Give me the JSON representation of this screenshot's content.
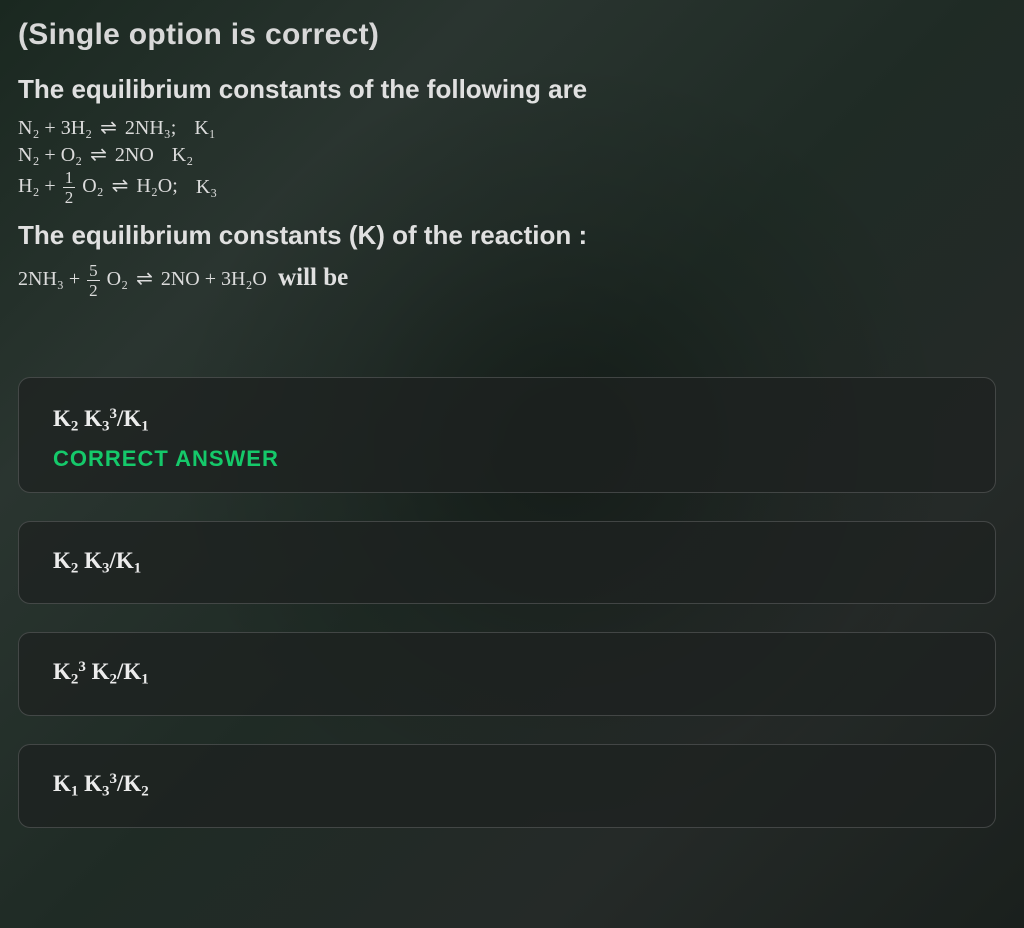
{
  "heading": "(Single option is correct)",
  "subheading1": "The equilibrium constants of the following are",
  "eq1_lhs": "N₂ + 3H₂",
  "eq1_rhs": "2NH₃;",
  "eq1_k": "K₁",
  "eq2_lhs": "N₂ + O₂",
  "eq2_rhs": "2NO",
  "eq2_k": "K₂",
  "eq3_lhs_a": "H₂ +",
  "eq3_frac_num": "1",
  "eq3_frac_den": "2",
  "eq3_lhs_b": "O₂",
  "eq3_rhs": "H₂O;",
  "eq3_k": "K₃",
  "subheading2": "The equilibrium constants (K) of the reaction :",
  "target_a": "2NH₃ +",
  "target_frac_num": "5",
  "target_frac_den": "2",
  "target_b": "O₂",
  "target_c": "2NO + 3H₂O",
  "will_be": "will be",
  "options": {
    "a": {
      "html": "K<sub>2</sub> K<sub>3</sub><sup>3</sup>/K<sub>1</sub>",
      "correct_label": "CORRECT ANSWER"
    },
    "b": {
      "html": "K<sub>2</sub> K<sub>3</sub>/K<sub>1</sub>"
    },
    "c": {
      "html": "K<sub>2</sub><sup>3</sup> K<sub>2</sub>/K<sub>1</sub>"
    },
    "d": {
      "html": "K<sub>1</sub> K<sub>3</sub><sup>3</sup>/K<sub>2</sub>"
    }
  },
  "colors": {
    "text": "#e0e0e0",
    "correct": "#15c96a",
    "option_bg": "rgba(30,33,32,0.75)",
    "option_border": "rgba(180,180,180,0.25)"
  }
}
